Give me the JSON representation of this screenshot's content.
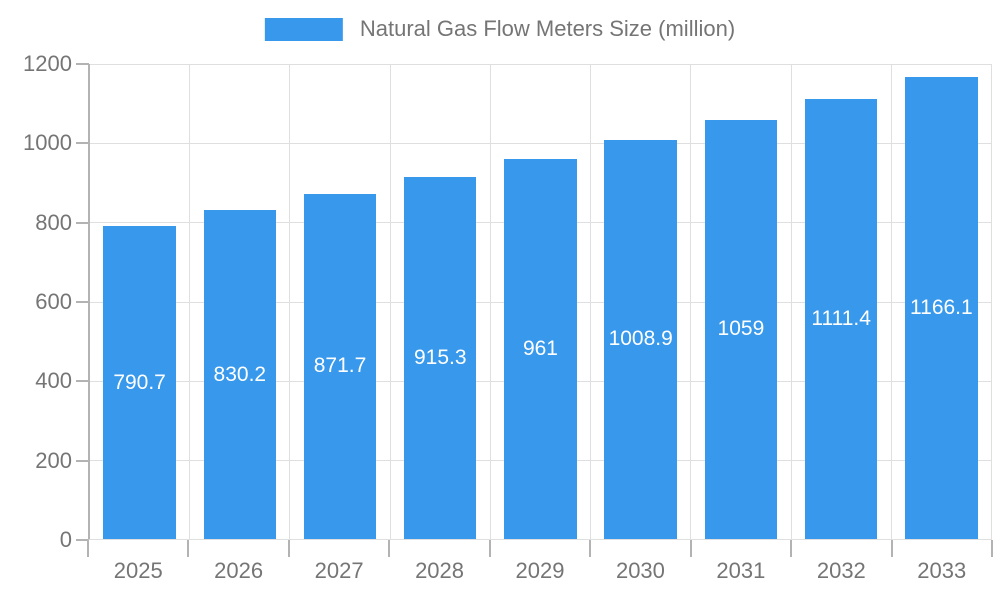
{
  "chart_data": {
    "type": "bar",
    "title": "Natural Gas Flow Meters Size (million)",
    "legend": {
      "label": "Natural Gas Flow Meters Size (million)",
      "position": "top"
    },
    "categories": [
      "2025",
      "2026",
      "2027",
      "2028",
      "2029",
      "2030",
      "2031",
      "2032",
      "2033"
    ],
    "values": [
      790.7,
      830.2,
      871.7,
      915.3,
      961,
      1008.9,
      1059,
      1111.4,
      1166.1
    ],
    "value_labels": [
      "790.7",
      "830.2",
      "871.7",
      "915.3",
      "961",
      "1008.9",
      "1059",
      "1111.4",
      "1166.1"
    ],
    "xlabel": "",
    "ylabel": "",
    "ylim": [
      0,
      1200
    ],
    "yticks": [
      0,
      200,
      400,
      600,
      800,
      1000,
      1200
    ],
    "grid": true,
    "bar_width_fraction": 0.73,
    "colors": {
      "bar": "#3899EC",
      "axis": "#B3B3B3",
      "grid": "#DFDFDF",
      "text": "#757575",
      "bar_label": "#FFFFFF"
    }
  }
}
